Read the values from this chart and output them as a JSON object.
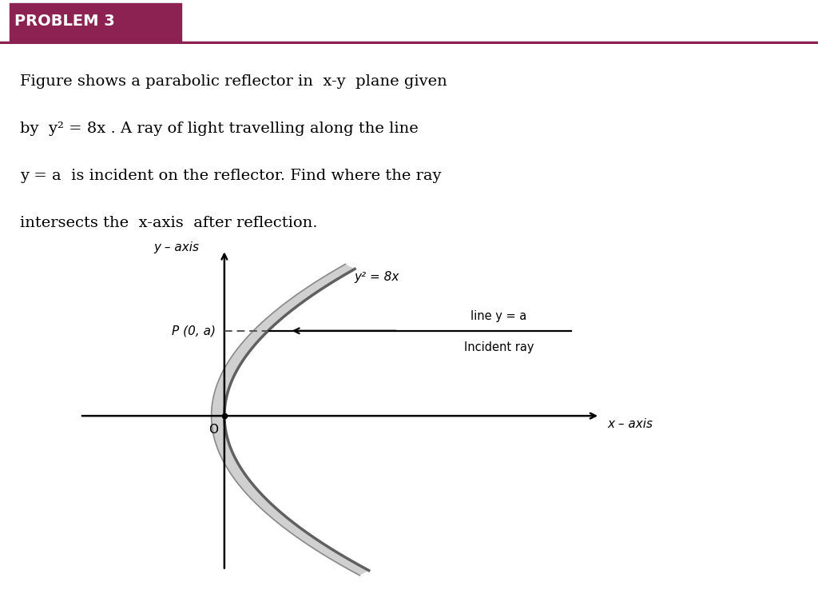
{
  "background_color": "#ffffff",
  "header_bg_color": "#8b2252",
  "header_text": "PROBLEM 3",
  "header_text_color": "#ffffff",
  "header_rule_color": "#8b2252",
  "body_text": "Figure shows a parabolic reflector in  x-y  plane given\nby  y² = 8x . A ray of light travelling along the line\ny = a  is incident on the reflector. Find where the ray\nintersects the  x-axis  after reflection.",
  "parabola_eq": "y² = 8x",
  "line_label_1": "line y = a",
  "line_label_2": "Incident ray",
  "point_label": "P (0, a)",
  "x_axis_label": "x – axis",
  "y_axis_label": "y – axis",
  "origin_label": "O",
  "parabola_color_outer": "#606060",
  "parabola_color_fill": "#d0d0d0",
  "axis_color": "#000000",
  "dashed_line_color": "#555555",
  "incident_ray_color": "#000000",
  "text_color": "#000000",
  "fig_width": 10.24,
  "fig_height": 7.38,
  "a_val": 2.2
}
